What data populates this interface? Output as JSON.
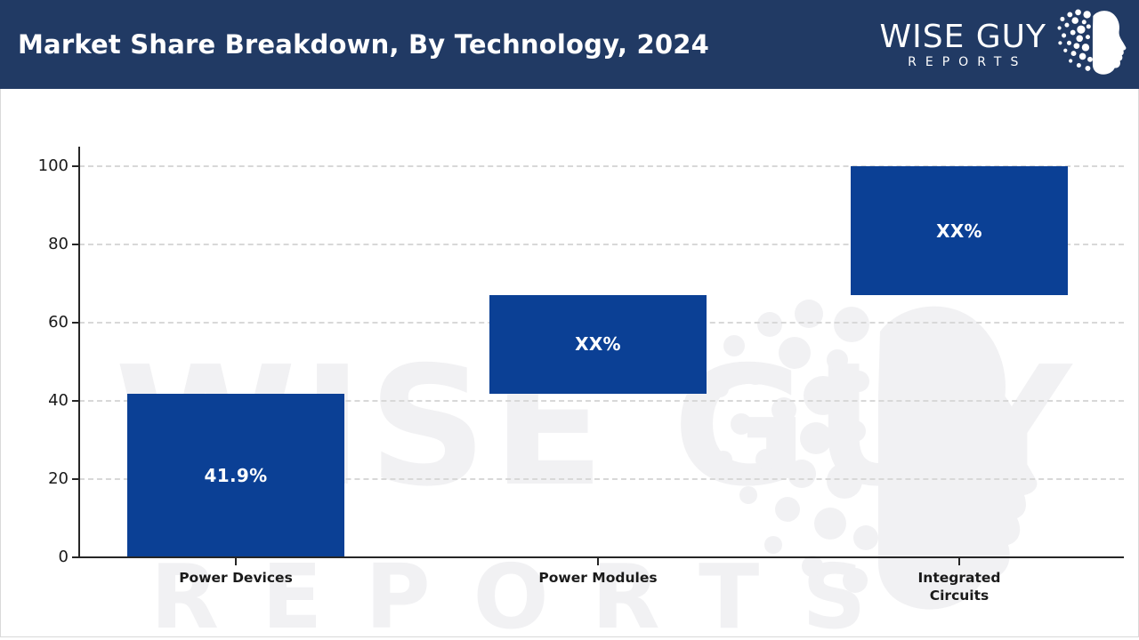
{
  "header": {
    "title": "Market Share Breakdown, By Technology, 2024",
    "bg_color": "#213a64",
    "logo": {
      "line1": "WISE GUY",
      "line2": "REPORTS"
    }
  },
  "watermark": {
    "line1": "WISE GUY",
    "line2": "REPORTS"
  },
  "chart_data": {
    "type": "bar",
    "variant": "waterfall",
    "title": "Market Share Breakdown, By Technology, 2024",
    "categories": [
      "Power Devices",
      "Power Modules",
      "Integrated\nCircuits"
    ],
    "segments": [
      {
        "category": "Power Devices",
        "start": 0,
        "end": 41.9,
        "value_label": "41.9%"
      },
      {
        "category": "Power Modules",
        "start": 41.9,
        "end": 67.0,
        "value_label": "XX%"
      },
      {
        "category": "Integrated Circuits",
        "start": 67.0,
        "end": 100.0,
        "value_label": "XX%"
      }
    ],
    "yticks": [
      0,
      20,
      40,
      60,
      80,
      100
    ],
    "ylim": [
      0,
      105
    ],
    "grid": true,
    "legend": false,
    "xlabel": "",
    "ylabel": "",
    "bar_color": "#0b4095",
    "grid_color": "#d8d8d8",
    "axis_color": "#262626",
    "tick_label_color": "#1a1a1a",
    "bar_label_color": "#ffffff"
  }
}
